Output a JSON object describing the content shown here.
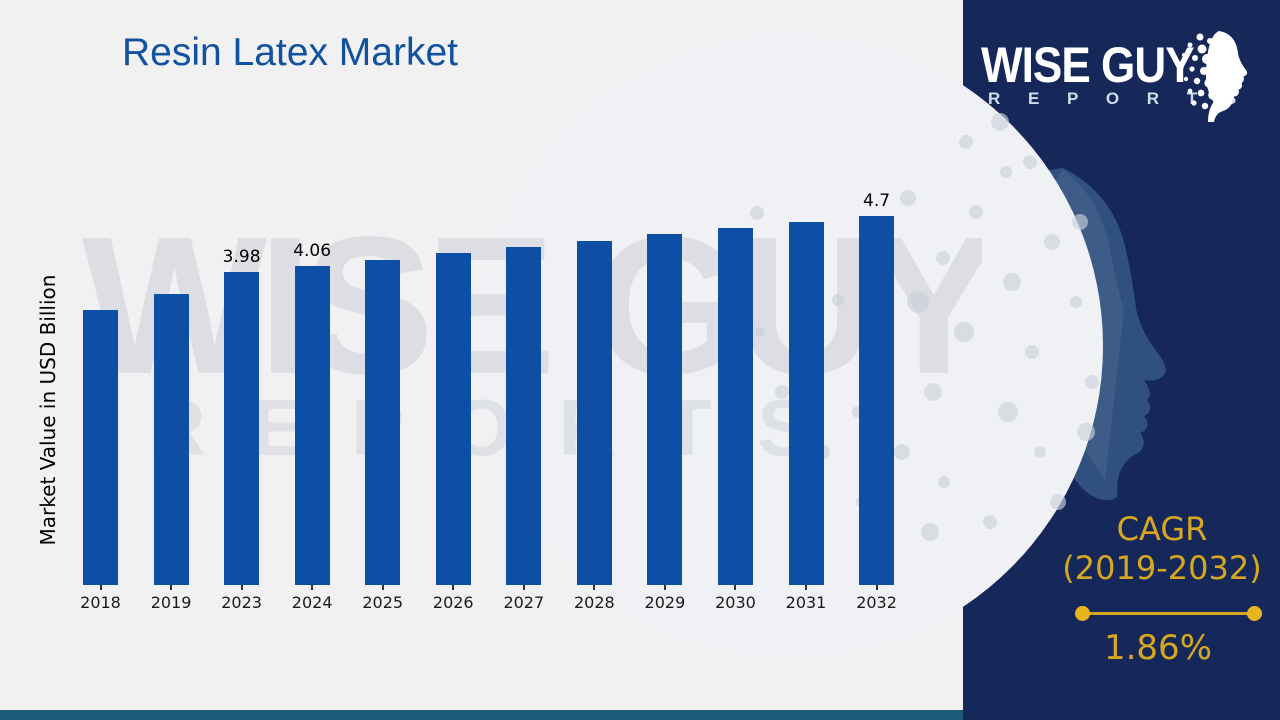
{
  "header": {
    "title": "Resin Latex Market",
    "title_color": "#1152a0"
  },
  "watermark": {
    "line1": "WISE GUY",
    "line2": "REPORTS"
  },
  "logo": {
    "line1": "WISE GUY",
    "line2": "R E P O R T S",
    "icon": "dotted-face-profile-icon"
  },
  "cagr": {
    "label": "CAGR",
    "range": "(2019-2032)",
    "value": "1.86%",
    "accent_color": "#d7a81f"
  },
  "decor": {
    "panel_color": "#16285a",
    "teal_strip_color": "#1d5a7a",
    "face_silhouette_color": "#30507f",
    "sphere_color": "#f0f1f4"
  },
  "chart_data": {
    "type": "bar",
    "title": "Resin Latex Market",
    "xlabel": "",
    "ylabel": "Market Value in USD Billion",
    "categories": [
      "2018",
      "2019",
      "2023",
      "2024",
      "2025",
      "2026",
      "2027",
      "2028",
      "2029",
      "2030",
      "2031",
      "2032"
    ],
    "values": [
      3.5,
      3.7,
      3.98,
      4.06,
      4.14,
      4.22,
      4.3,
      4.38,
      4.46,
      4.54,
      4.62,
      4.7
    ],
    "value_labels": [
      "",
      "",
      "3.98",
      "4.06",
      "",
      "",
      "",
      "",
      "",
      "",
      "",
      "4.7"
    ],
    "bar_color": "#0d4ea6",
    "background_color": "#f1f1f2",
    "grid": false,
    "legend": "none",
    "ylim": [
      0,
      5
    ],
    "unit": "USD Billion"
  }
}
